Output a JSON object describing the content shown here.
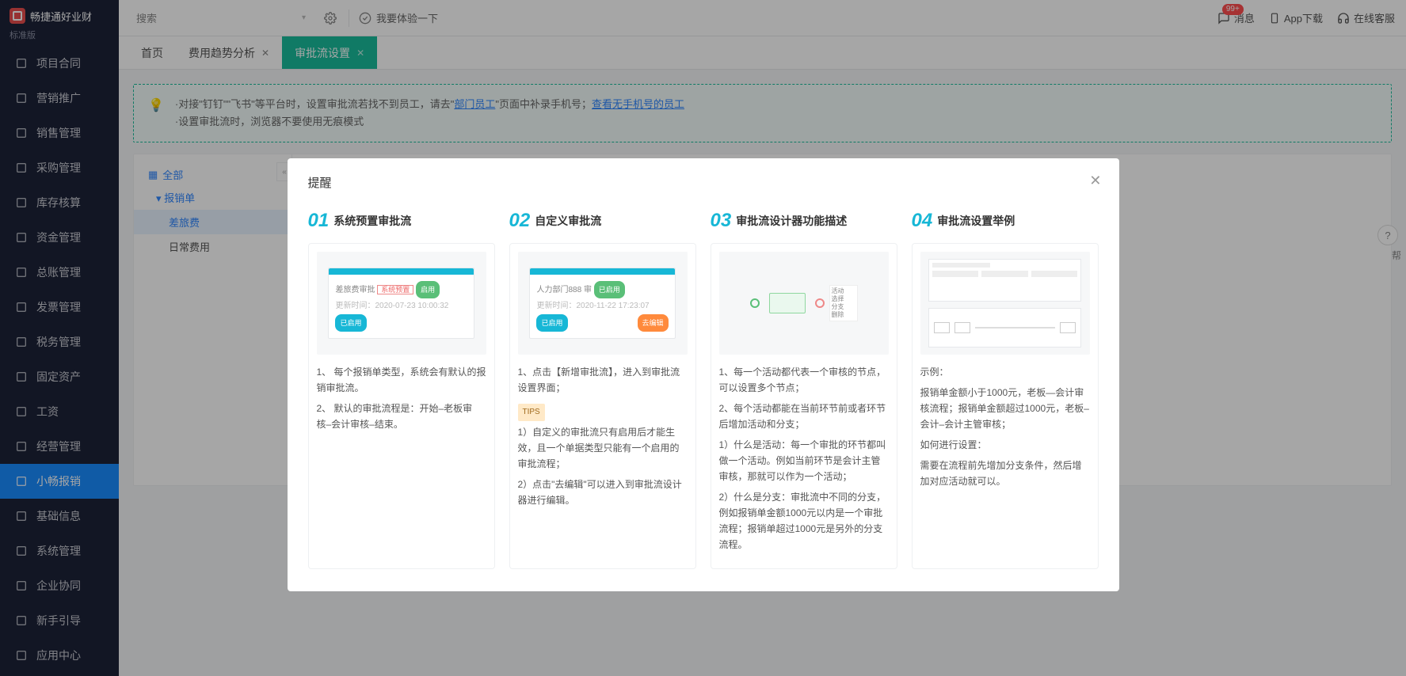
{
  "brand": {
    "name": "畅捷通好业财",
    "edition": "标准版"
  },
  "topbar": {
    "search_placeholder": "搜索",
    "try_label": "我要体验一下",
    "msg_label": "消息",
    "msg_badge": "99+",
    "app_label": "App下载",
    "service_label": "在线客服"
  },
  "tabs": {
    "home": "首页",
    "t1": "费用趋势分析",
    "t2": "审批流设置"
  },
  "notice": {
    "line1_a": "·对接\"钉钉\"\"飞书\"等平台时，设置审批流若找不到员工，请去\"",
    "link1": "部门员工",
    "line1_b": "\"页面中补录手机号；",
    "link2": "查看无手机号的员工",
    "line2": "·设置审批流时，浏览器不要使用无痕模式"
  },
  "tree": {
    "all": "全部",
    "n1": "报销单",
    "n1a": "差旅费",
    "n1b": "日常费用"
  },
  "help": "帮",
  "sidebar": {
    "items": [
      "项目合同",
      "营销推广",
      "销售管理",
      "采购管理",
      "库存核算",
      "资金管理",
      "总账管理",
      "发票管理",
      "税务管理",
      "固定资产",
      "工资",
      "经营管理",
      "小畅报销",
      "基础信息",
      "系统管理",
      "企业协同",
      "新手引导",
      "应用中心"
    ],
    "active_index": 12
  },
  "modal": {
    "title": "提醒",
    "cards": [
      {
        "num": "01",
        "title": "系统预置审批流",
        "lines": [
          "1、 每个报销单类型，系统会有默认的报销审批流。",
          "2、 默认的审批流程是：开始–老板审核–会计审核–结束。"
        ]
      },
      {
        "num": "02",
        "title": "自定义审批流",
        "lines": [
          "1、点击【新增审批流】，进入到审批流设置界面；",
          "TIPS",
          "1）自定义的审批流只有启用后才能生效，且一个单据类型只能有一个启用的审批流程；",
          "2）点击\"去编辑\"可以进入到审批流设计器进行编辑。"
        ]
      },
      {
        "num": "03",
        "title": "审批流设计器功能描述",
        "lines": [
          "1、每一个活动都代表一个审核的节点，可以设置多个节点；",
          "2、每个活动都能在当前环节前或者环节后增加活动和分支；",
          "1）什么是活动：每一个审批的环节都叫做一个活动。例如当前环节是会计主管审核，那就可以作为一个活动；",
          "2）什么是分支：审批流中不同的分支，例如报销单金额1000元以内是一个审批流程；报销单超过1000元是另外的分支流程。"
        ]
      },
      {
        "num": "04",
        "title": "审批流设置举例",
        "lines": [
          "示例：",
          "报销单金额小于1000元，老板—会计审核流程；报销单金额超过1000元，老板–会计–会计主管审核；",
          "如何进行设置：",
          "需要在流程前先增加分支条件，然后增加对应活动就可以。"
        ]
      }
    ]
  }
}
